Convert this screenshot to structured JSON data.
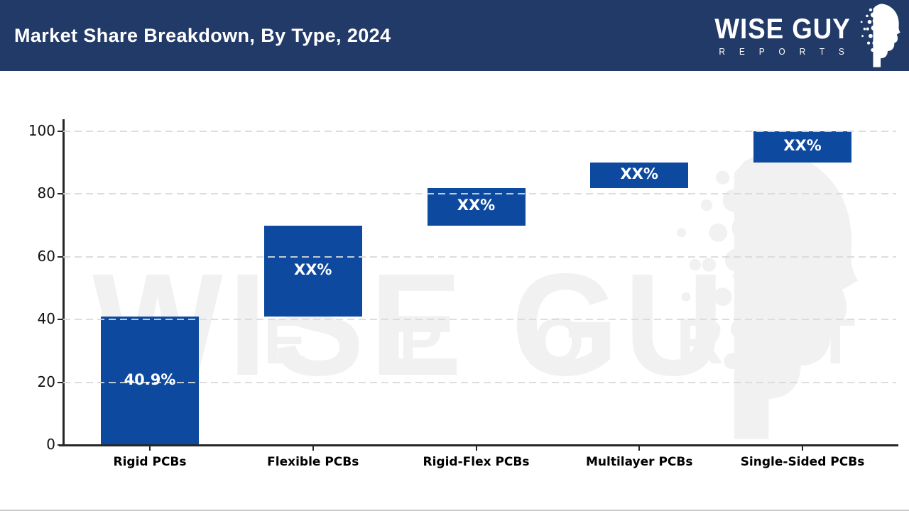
{
  "header": {
    "title": "Market Share Breakdown, By Type, 2024",
    "logo_line1": "WISE GUY",
    "logo_line2": "R E P O R T S"
  },
  "watermark": {
    "line1": "WISE GUY",
    "line2": "R E P O R T S"
  },
  "colors": {
    "header_background": "#223a68",
    "bar_blue": "#0d4a9f",
    "gridline_gray": "#d9d9d9",
    "axis_dark": "#262626",
    "watermark_gray": "#f1f1f1",
    "bar_label_white": "#ffffff"
  },
  "chart_data": {
    "type": "bar",
    "subtype": "waterfall",
    "title": "Market Share Breakdown, By Type, 2024",
    "categories": [
      "Rigid PCBs",
      "Flexible PCBs",
      "Rigid-Flex PCBs",
      "Multilayer PCBs",
      "Single-Sided PCBs"
    ],
    "series": [
      {
        "name": "Rigid PCBs",
        "start": 0,
        "end": 40.9,
        "value": 40.9,
        "label": "40.9%"
      },
      {
        "name": "Flexible PCBs",
        "start": 40.9,
        "end": 70,
        "value": 29.1,
        "label": "XX%"
      },
      {
        "name": "Rigid-Flex PCBs",
        "start": 70,
        "end": 82,
        "value": 12,
        "label": "XX%"
      },
      {
        "name": "Multilayer PCBs",
        "start": 82,
        "end": 90,
        "value": 8,
        "label": "XX%"
      },
      {
        "name": "Single-Sided PCBs",
        "start": 90,
        "end": 100,
        "value": 10,
        "label": "XX%"
      }
    ],
    "xlabel": "",
    "ylabel": "",
    "ylim": [
      0,
      104
    ],
    "yticks": [
      0,
      20,
      40,
      60,
      80,
      100
    ],
    "grid": "horizontal dashed, drawn above bars",
    "legend": "none",
    "bar_color": "#0d4a9f",
    "label_color": "#ffffff"
  }
}
